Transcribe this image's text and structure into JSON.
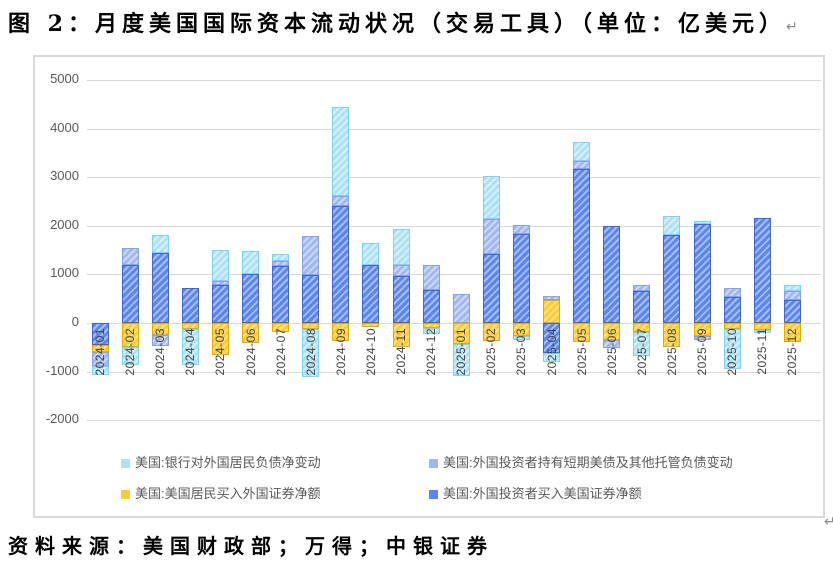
{
  "title": "图 2：月度美国国际资本流动状况（交易工具）（单位：亿美元）",
  "source_note": "资料来源：美国财政部；万得；中银证券",
  "paragraph_mark": "↵",
  "colors": {
    "blue": "#5b86eb",
    "yellow": "#ffcb33",
    "periwinkle": "#a0b8f1",
    "cyan": "#ade1f6",
    "gridline": "#d9d9d9",
    "axis_text": "#595959"
  },
  "chart_data": {
    "type": "bar",
    "stacked": true,
    "unit": "亿美元",
    "grid": true,
    "ylim": [
      -2000,
      5000
    ],
    "y_ticks": [
      5000,
      4000,
      3000,
      2000,
      1000,
      0,
      -1000,
      -2000
    ],
    "categories": [
      "2024-01",
      "2024-02",
      "2024-03",
      "2024-04",
      "2024-05",
      "2024-06",
      "2024-07",
      "2024-08",
      "2024-09",
      "2024-10",
      "2024-11",
      "2024-12",
      "2025-01",
      "2025-02",
      "2025-03",
      "2025-04",
      "2025-05",
      "2025-06",
      "2025-07",
      "2025-08",
      "2025-09",
      "2025-10",
      "2025-11",
      "2025-12"
    ],
    "series": [
      {
        "name": "美国:外国投资者买入美国证券净额",
        "color_key": "blue",
        "values": [
          -460,
          1190,
          1440,
          720,
          785,
          1000,
          1180,
          980,
          2410,
          1190,
          965,
          675,
          0,
          1420,
          1825,
          -620,
          3160,
          2000,
          660,
          1810,
          2030,
          525,
          2170,
          475
        ]
      },
      {
        "name": "美国:美国居民买入外国证券净额",
        "color_key": "yellow",
        "values": [
          -140,
          -490,
          -255,
          -115,
          -650,
          -410,
          -180,
          -125,
          -365,
          -80,
          -500,
          -110,
          -430,
          -365,
          -275,
          470,
          -385,
          -345,
          -180,
          -490,
          -275,
          -120,
          -140,
          -400
        ]
      },
      {
        "name": "美国:外国投资者持有短期美债及其他托管负债变动",
        "color_key": "periwinkle",
        "values": [
          -290,
          350,
          -225,
          0,
          80,
          0,
          90,
          810,
          200,
          0,
          235,
          515,
          595,
          730,
          190,
          90,
          170,
          -160,
          130,
          0,
          -70,
          205,
          0,
          190
        ]
      },
      {
        "name": "美国:银行对外国居民负债净变动",
        "color_key": "cyan",
        "values": [
          -180,
          -380,
          380,
          -745,
          640,
          490,
          150,
          -995,
          1830,
          450,
          725,
          -115,
          -670,
          880,
          -70,
          -190,
          390,
          0,
          -495,
          390,
          60,
          -825,
          -70,
          120
        ]
      }
    ],
    "legend": [
      {
        "label": "美国:银行对外国居民负债净变动",
        "color_key": "cyan",
        "row": 0,
        "col": 0
      },
      {
        "label": "美国:外国投资者持有短期美债及其他托管负债变动",
        "color_key": "periwinkle",
        "row": 0,
        "col": 1
      },
      {
        "label": "美国:美国居民买入外国证券净额",
        "color_key": "yellow",
        "row": 1,
        "col": 0
      },
      {
        "label": "美国:外国投资者买入美国证券净额",
        "color_key": "blue",
        "row": 1,
        "col": 1
      }
    ],
    "legend_position": "bottom"
  }
}
